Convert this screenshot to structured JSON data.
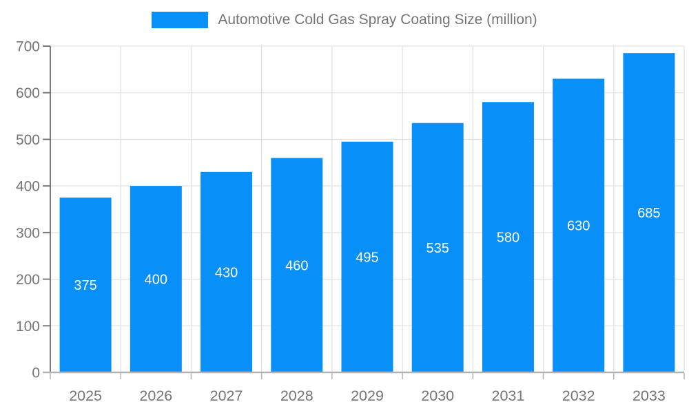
{
  "legend": {
    "label": "Automotive Cold Gas Spray Coating Size (million)"
  },
  "chart_data": {
    "type": "bar",
    "title": "",
    "series_name": "Automotive Cold Gas Spray Coating Size (million)",
    "categories": [
      "2025",
      "2026",
      "2027",
      "2028",
      "2029",
      "2030",
      "2031",
      "2032",
      "2033"
    ],
    "values": [
      375,
      400,
      430,
      460,
      495,
      535,
      580,
      630,
      685
    ],
    "data_labels_inside_bars": true,
    "xlabel": "",
    "ylabel": "",
    "ylim": [
      0,
      700
    ],
    "yticks": [
      0,
      100,
      200,
      300,
      400,
      500,
      600,
      700
    ],
    "grid": "horizontal and vertical",
    "legend_position": "top-center",
    "colors": {
      "bar": "#0990f8",
      "bar_label_text": "#ffffff",
      "axis_text": "#757575",
      "grid_line": "#e2e2e2",
      "x_axis_line": "#b3b3b3",
      "y_axis_line": "#7a7a7a",
      "tick_mark": "#b3b3b3",
      "background": "#ffffff"
    }
  }
}
